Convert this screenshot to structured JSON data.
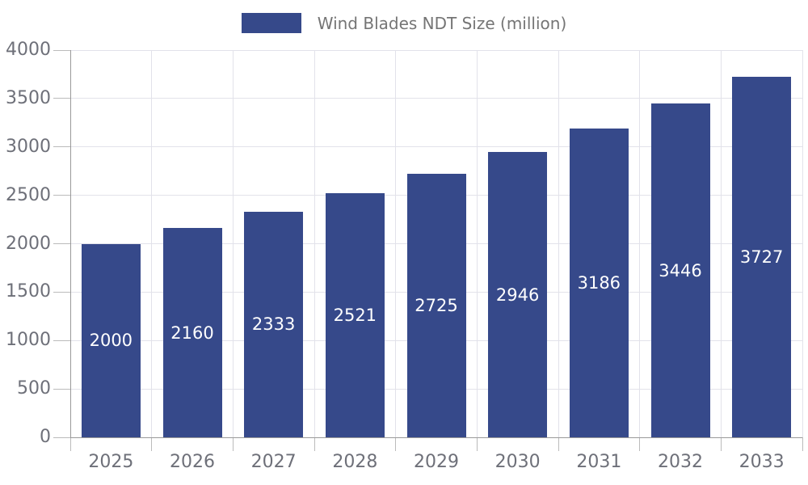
{
  "legend": {
    "label": "Wind Blades NDT Size (million)"
  },
  "chart_data": {
    "type": "bar",
    "title": "Wind Blades NDT Size (million)",
    "categories": [
      "2025",
      "2026",
      "2027",
      "2028",
      "2029",
      "2030",
      "2031",
      "2032",
      "2033"
    ],
    "values": [
      2000,
      2160,
      2333,
      2521,
      2725,
      2946,
      3186,
      3446,
      3727
    ],
    "xlabel": "",
    "ylabel": "",
    "ylim": [
      0,
      4000
    ],
    "y_ticks": [
      0,
      500,
      1000,
      1500,
      2000,
      2500,
      3000,
      3500,
      4000
    ],
    "grid": true,
    "legend_position": "top-center",
    "bar_value_labels_inside": true
  },
  "colors": {
    "bar": "#36498A",
    "bar_label": "#FFFFFF",
    "axis_line": "#999999",
    "tick": "#BBBBBB",
    "grid_line": "#E2E2EA",
    "axis_label": "#6E7079",
    "legend_text": "#757575",
    "background": "#FFFFFF"
  }
}
